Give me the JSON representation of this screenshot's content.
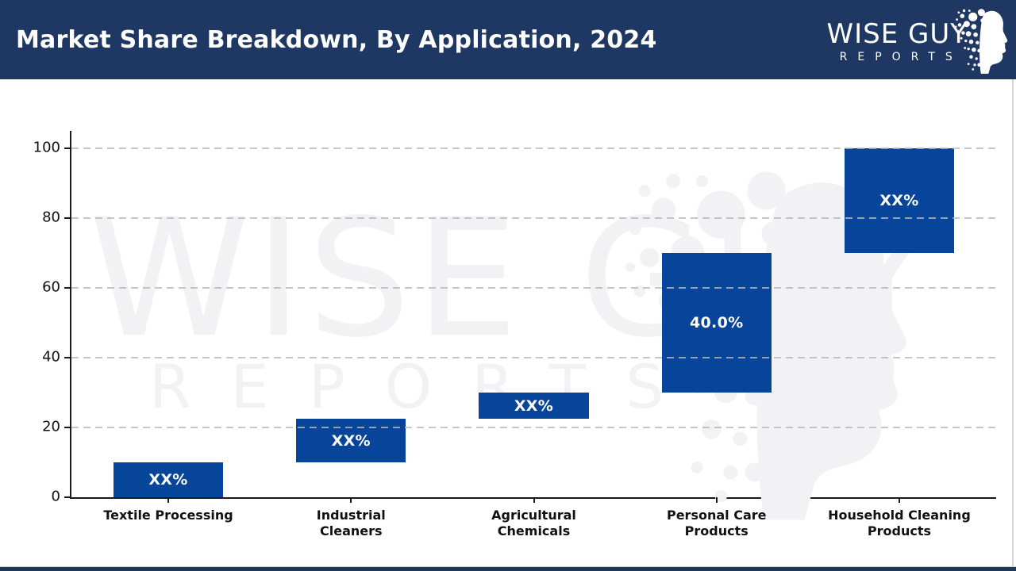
{
  "header": {
    "title": "Market Share Breakdown, By Application, 2024",
    "logo": {
      "name": "WISE GUY",
      "sub": "REPORTS"
    }
  },
  "watermark": {
    "name": "WISE GUY",
    "sub": "REPORTS"
  },
  "chart_data": {
    "type": "bar",
    "variant": "floating-segment-waterfall",
    "title": "Market Share Breakdown, By Application, 2024",
    "categories": [
      "Textile Processing",
      "Industrial Cleaners",
      "Agricultural Chemicals",
      "Personal Care Products",
      "Household Cleaning Products"
    ],
    "bars": [
      {
        "category": "Textile Processing",
        "label_lines": [
          "Textile Processing"
        ],
        "from": 0,
        "to": 10,
        "label": "XX%"
      },
      {
        "category": "Industrial Cleaners",
        "label_lines": [
          "Industrial",
          "Cleaners"
        ],
        "from": 10,
        "to": 22.5,
        "label": "XX%"
      },
      {
        "category": "Agricultural Chemicals",
        "label_lines": [
          "Agricultural",
          "Chemicals"
        ],
        "from": 22.5,
        "to": 30,
        "label": "XX%"
      },
      {
        "category": "Personal Care Products",
        "label_lines": [
          "Personal Care",
          "Products"
        ],
        "from": 30,
        "to": 70,
        "label": "40.0%"
      },
      {
        "category": "Household Cleaning Products",
        "label_lines": [
          "Household Cleaning",
          "Products"
        ],
        "from": 70,
        "to": 100,
        "label": "XX%"
      }
    ],
    "ylabel": "",
    "xlabel": "",
    "ylim": [
      0,
      100
    ],
    "yticks": [
      0,
      20,
      40,
      60,
      80,
      100
    ],
    "grid": {
      "axis": "y",
      "style": "dashed"
    },
    "legend": null,
    "colors": {
      "bar": "#07459b",
      "header_band": "#1f3863",
      "watermark": "#f2f2f4",
      "axis": "#1a1a1a",
      "gridline": "#bbbbbb",
      "bar_label_text": "#ffffff"
    }
  }
}
